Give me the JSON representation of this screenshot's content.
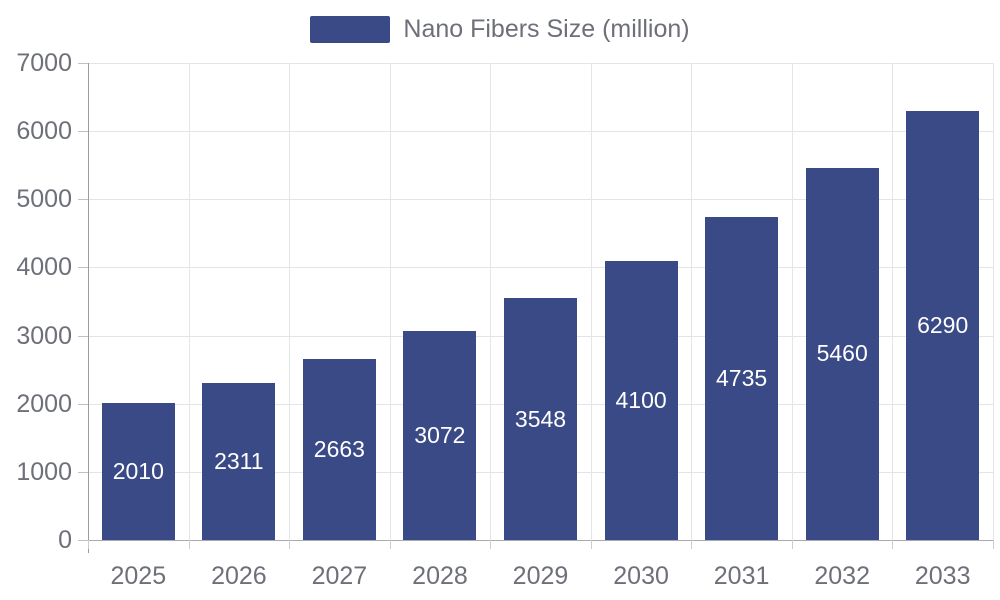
{
  "chart_data": {
    "type": "bar",
    "title": "",
    "legend": "Nano Fibers Size (million)",
    "legend_position": "top-center",
    "categories": [
      "2025",
      "2026",
      "2027",
      "2028",
      "2029",
      "2030",
      "2031",
      "2032",
      "2033"
    ],
    "values": [
      2010,
      2311,
      2663,
      3072,
      3548,
      4100,
      4735,
      5460,
      6290
    ],
    "xlabel": "",
    "ylabel": "",
    "ylim": [
      0,
      7000
    ],
    "ytick_step": 1000,
    "y_tick_labels": [
      "0",
      "1000",
      "2000",
      "3000",
      "4000",
      "5000",
      "6000",
      "7000"
    ],
    "grid": true,
    "bar_color": "#3A4A87",
    "bar_value_label_color": "#ffffff",
    "axis_label_color": "#6E7079"
  }
}
